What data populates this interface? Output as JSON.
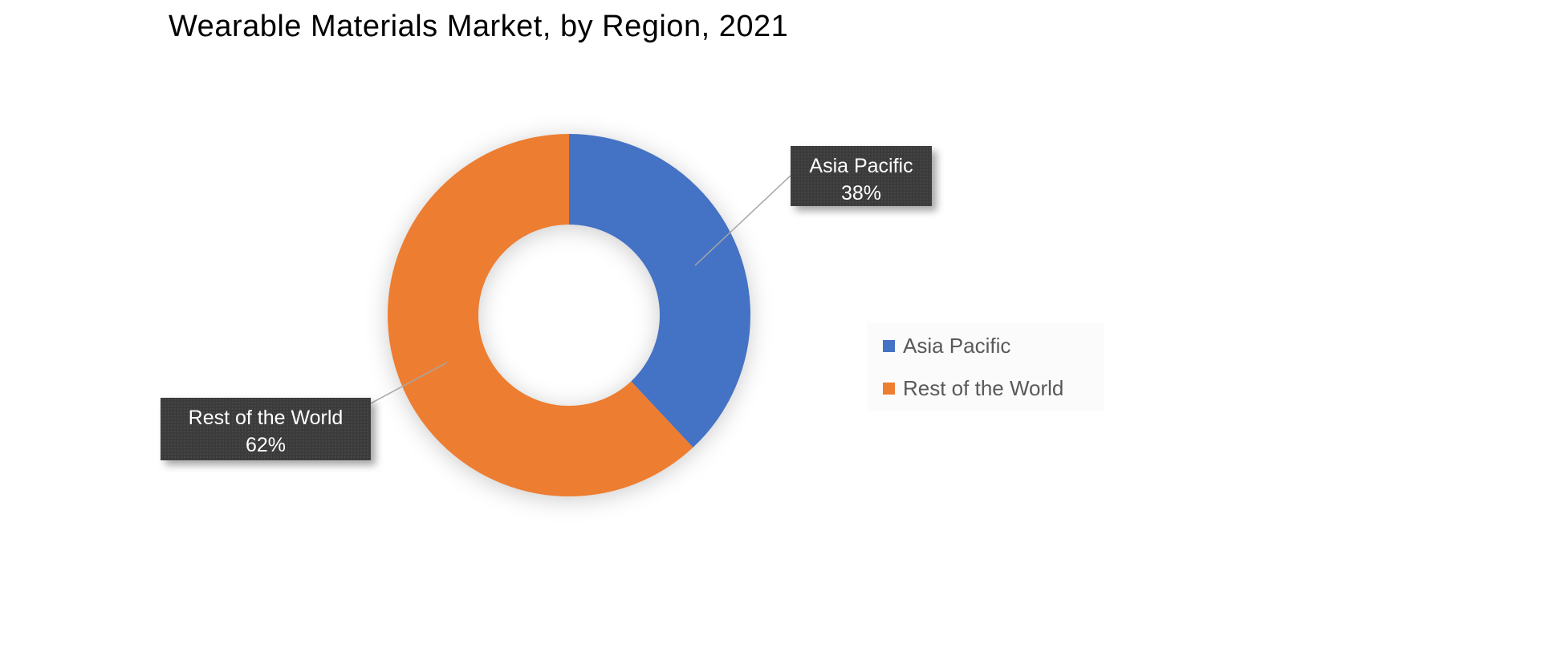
{
  "chart_data": {
    "type": "pie",
    "subtype": "donut",
    "title": "Wearable Materials Market, by Region, 2021",
    "categories": [
      "Asia Pacific",
      "Rest of the World"
    ],
    "values": [
      38,
      62
    ],
    "unit": "%",
    "colors": [
      "#4472c4",
      "#ed7d31"
    ],
    "start_angle": "top",
    "direction": "clockwise",
    "inner_radius_ratio": 0.5,
    "legend_position": "right",
    "data_labels": [
      "Asia Pacific 38%",
      "Rest of the World 62%"
    ]
  },
  "callouts": [
    {
      "label": "Asia Pacific",
      "value": "38%"
    },
    {
      "label": "Rest of the World",
      "value": "62%"
    }
  ],
  "legend": {
    "items": [
      {
        "label": "Asia Pacific",
        "color": "#4472c4"
      },
      {
        "label": "Rest of the World",
        "color": "#ed7d31"
      }
    ]
  },
  "style": {
    "callout_background": "#3b3b3b",
    "callout_text": "#ffffff",
    "leader_line_color": "#a6a6a6",
    "legend_background": "#fbfbfb",
    "legend_text": "#595959",
    "title_color": "#000000"
  }
}
